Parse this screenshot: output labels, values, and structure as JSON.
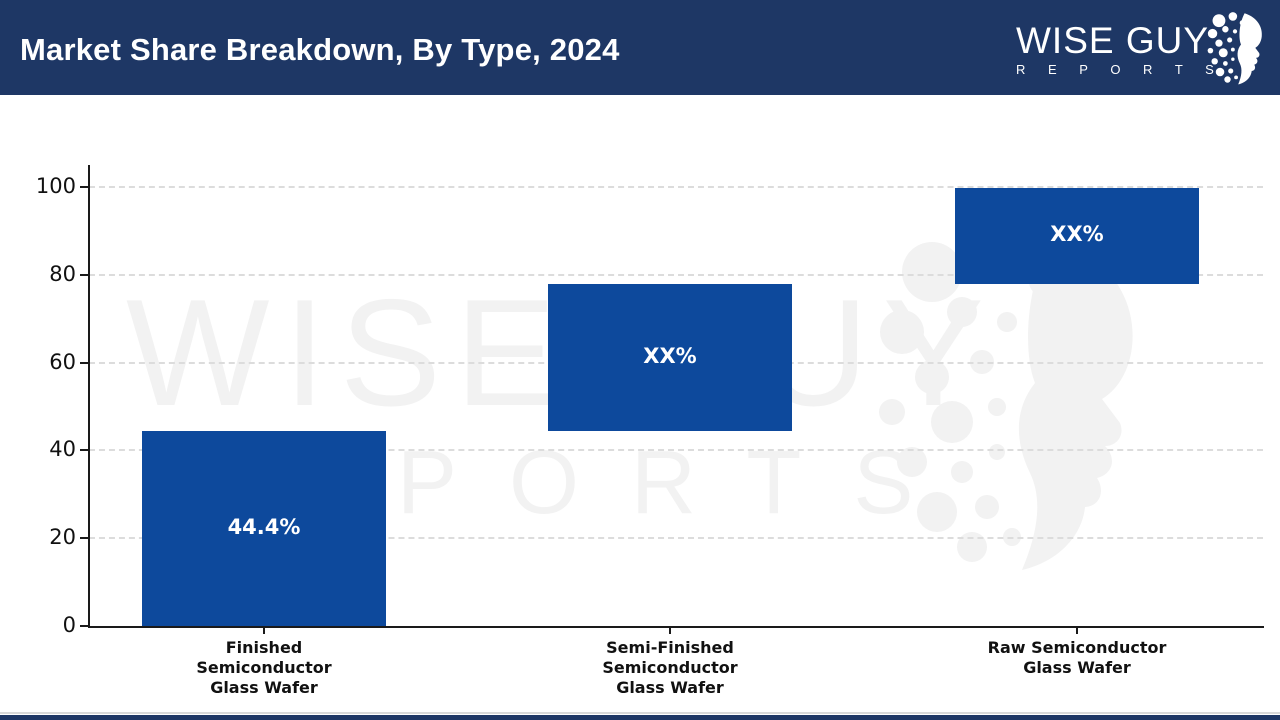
{
  "header": {
    "title": "Market Share Breakdown, By Type, 2024",
    "logo_line1": "WISE GUY",
    "logo_line2": "R E P O R T S"
  },
  "watermark": {
    "line1": "WISE GUY",
    "line2": "REPORTS"
  },
  "chart_data": {
    "type": "bar",
    "subtype": "floating-waterfall-bars",
    "title": "Market Share Breakdown, By Type, 2024",
    "categories": [
      "Finished Semiconductor Glass Wafer",
      "Semi-Finished Semiconductor Glass Wafer",
      "Raw Semiconductor Glass Wafer"
    ],
    "categories_lines": [
      [
        "Finished",
        "Semiconductor",
        "Glass Wafer"
      ],
      [
        "Semi-Finished",
        "Semiconductor",
        "Glass Wafer"
      ],
      [
        "Raw Semiconductor",
        "Glass Wafer"
      ]
    ],
    "bars": [
      {
        "category": "Finished Semiconductor Glass Wafer",
        "base": 0,
        "top": 44.4,
        "label": "44.4%"
      },
      {
        "category": "Semi-Finished Semiconductor Glass Wafer",
        "base": 44.4,
        "top": 77.8,
        "label": "XX%"
      },
      {
        "category": "Raw Semiconductor Glass Wafer",
        "base": 77.8,
        "top": 99.8,
        "label": "XX%"
      }
    ],
    "ylim": [
      0,
      100
    ],
    "yticks": [
      0,
      20,
      40,
      60,
      80,
      100
    ],
    "xlabel": "",
    "ylabel": "",
    "grid": "horizontal-dashed",
    "legend": "none",
    "colors": {
      "header_bg": "#1e3765",
      "bar": "#0d499c",
      "grid": "#dcdcdc",
      "axis": "#1a1a1a",
      "value_label": "#ffffff",
      "watermark": "#f2f2f2"
    }
  }
}
